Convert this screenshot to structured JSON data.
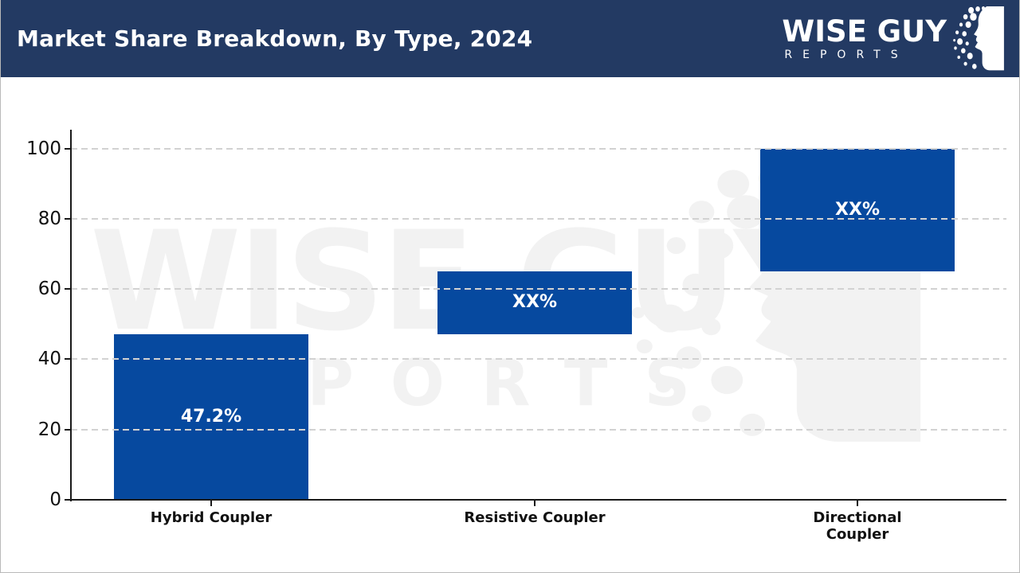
{
  "header": {
    "title": "Market Share Breakdown, By Type, 2024",
    "logo": {
      "line1": "WISE GUY",
      "line2": "REPORTS",
      "icon": "face-dots-icon"
    }
  },
  "watermark": {
    "line1": "WISE GUY",
    "line2": "REPORTS",
    "icon": "face-dots-icon"
  },
  "chart_data": {
    "type": "bar",
    "subtype": "floating-waterfall",
    "title": "Market Share Breakdown, By Type, 2024",
    "categories": [
      "Hybrid Coupler",
      "Resistive Coupler",
      "Directional\nCoupler"
    ],
    "series": [
      {
        "name": "Market Share (%)",
        "segments": [
          {
            "category": "Hybrid Coupler",
            "start": 0,
            "end": 47.2,
            "label": "47.2%"
          },
          {
            "category": "Resistive Coupler",
            "start": 47.2,
            "end": 65,
            "label": "XX%"
          },
          {
            "category": "Directional Coupler",
            "start": 65,
            "end": 100,
            "label": "XX%"
          }
        ]
      }
    ],
    "ylim": [
      0,
      105
    ],
    "yticks": [
      0,
      20,
      40,
      60,
      80,
      100
    ],
    "xlabel": "",
    "ylabel": "",
    "grid": "horizontal-dashed",
    "legend": "none",
    "colors": {
      "bar": "#06499f",
      "bar_label": "#ffffff",
      "grid": "#d2d2d2",
      "axis": "#1a1a1a",
      "tick_text": "#111111",
      "header_bg": "#233a63",
      "header_text": "#ffffff",
      "watermark": "#f2f2f2",
      "background": "#ffffff"
    }
  }
}
